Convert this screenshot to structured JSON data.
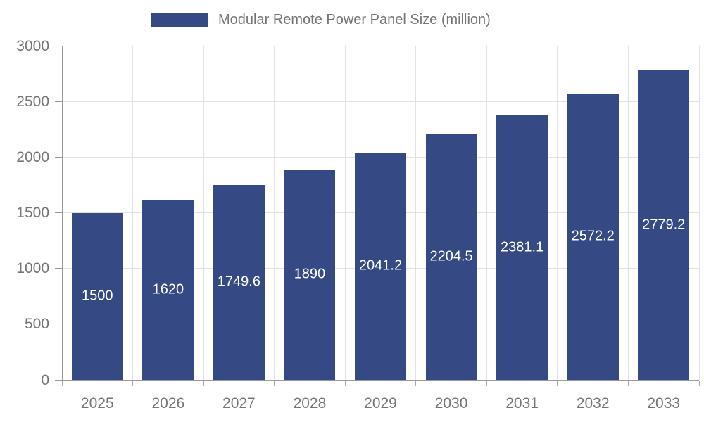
{
  "legend": {
    "label": "Modular Remote Power Panel Size (million)"
  },
  "chart_data": {
    "type": "bar",
    "title": "",
    "xlabel": "",
    "ylabel": "",
    "categories": [
      "2025",
      "2026",
      "2027",
      "2028",
      "2029",
      "2030",
      "2031",
      "2032",
      "2033"
    ],
    "series": [
      {
        "name": "Modular Remote Power Panel Size (million)",
        "values": [
          1500,
          1620,
          1749.6,
          1890,
          2041.2,
          2204.5,
          2381.1,
          2572.2,
          2779.2
        ]
      }
    ],
    "value_labels": [
      "1500",
      "1620",
      "1749.6",
      "1890",
      "2041.2",
      "2204.5",
      "2381.1",
      "2572.2",
      "2779.2"
    ],
    "ylim": [
      0,
      3000
    ],
    "ytick_labels": [
      "0",
      "500",
      "1000",
      "1500",
      "2000",
      "2500",
      "3000"
    ],
    "grid": true,
    "legend_position": "top",
    "colors": {
      "bar": "#354a85",
      "bar_label": "#ffffff",
      "axis_text": "#757575",
      "grid_line": "#e2e2e2",
      "axis_line": "#999999",
      "background": "#ffffff"
    }
  }
}
